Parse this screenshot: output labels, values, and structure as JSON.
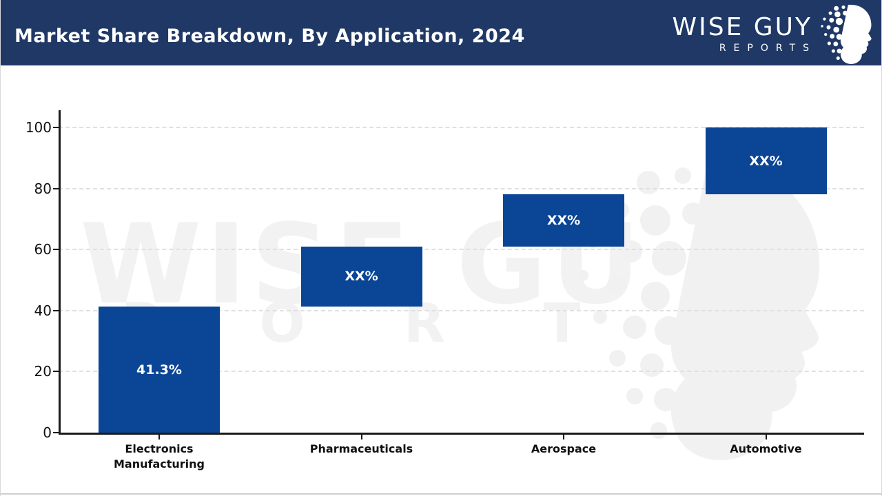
{
  "header": {
    "title": "Market Share Breakdown, By Application, 2024",
    "bg_color": "#1F3866",
    "logo": {
      "line1": "WISE GUY",
      "line2": "REPORTS"
    }
  },
  "watermark": {
    "line1": "WISE GU",
    "line2": "P O R T S"
  },
  "chart_data": {
    "type": "bar",
    "subtype": "waterfall-stacked-breakdown",
    "title": "Market Share Breakdown, By Application, 2024",
    "categories": [
      "Electronics\nManufacturing",
      "Pharmaceuticals",
      "Aerospace",
      "Automotive"
    ],
    "bars": [
      {
        "category": "Electronics Manufacturing",
        "label": "41.3%",
        "start": 0,
        "end": 41.3
      },
      {
        "category": "Pharmaceuticals",
        "label": "XX%",
        "start": 41.3,
        "end": 61
      },
      {
        "category": "Aerospace",
        "label": "XX%",
        "start": 61,
        "end": 78
      },
      {
        "category": "Automotive",
        "label": "XX%",
        "start": 78,
        "end": 100
      }
    ],
    "yticks": [
      0,
      20,
      40,
      60,
      80,
      100
    ],
    "ylim": [
      0,
      105
    ],
    "xlabel": "",
    "ylabel": "",
    "grid": "horizontal-dashed",
    "legend": "none",
    "bar_color": "#0a4596",
    "header_color": "#1F3866",
    "gridline_color": "#e0e0e0",
    "axis_color": "#1a1a1a"
  }
}
